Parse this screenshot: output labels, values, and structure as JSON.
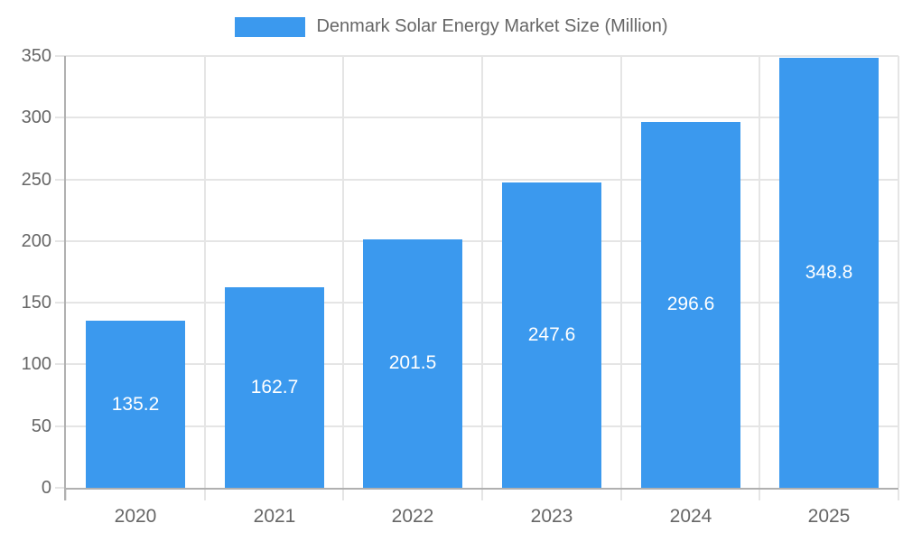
{
  "chart_data": {
    "type": "bar",
    "title": "Denmark Solar Energy Market Size (Million)",
    "legend_label": "Denmark Solar Energy Market Size (Million)",
    "categories": [
      "2020",
      "2021",
      "2022",
      "2023",
      "2024",
      "2025"
    ],
    "series": [
      {
        "name": "Denmark Solar Energy Market Size (Million)",
        "values": [
          135.2,
          162.7,
          201.5,
          247.6,
          296.6,
          348.8
        ]
      }
    ],
    "value_labels": [
      "135.2",
      "162.7",
      "201.5",
      "247.6",
      "296.6",
      "348.8"
    ],
    "xlabel": "",
    "ylabel": "",
    "ylim": [
      0,
      350
    ],
    "y_ticks": [
      0,
      50,
      100,
      150,
      200,
      250,
      300,
      350
    ],
    "grid": true,
    "legend_position": "top",
    "colors": {
      "bar": "#3b99ee",
      "axis_text": "#666666",
      "axis_line": "#b0b0b0",
      "grid_line": "#e5e5e5",
      "value_label": "#ffffff",
      "background": "#ffffff"
    }
  }
}
